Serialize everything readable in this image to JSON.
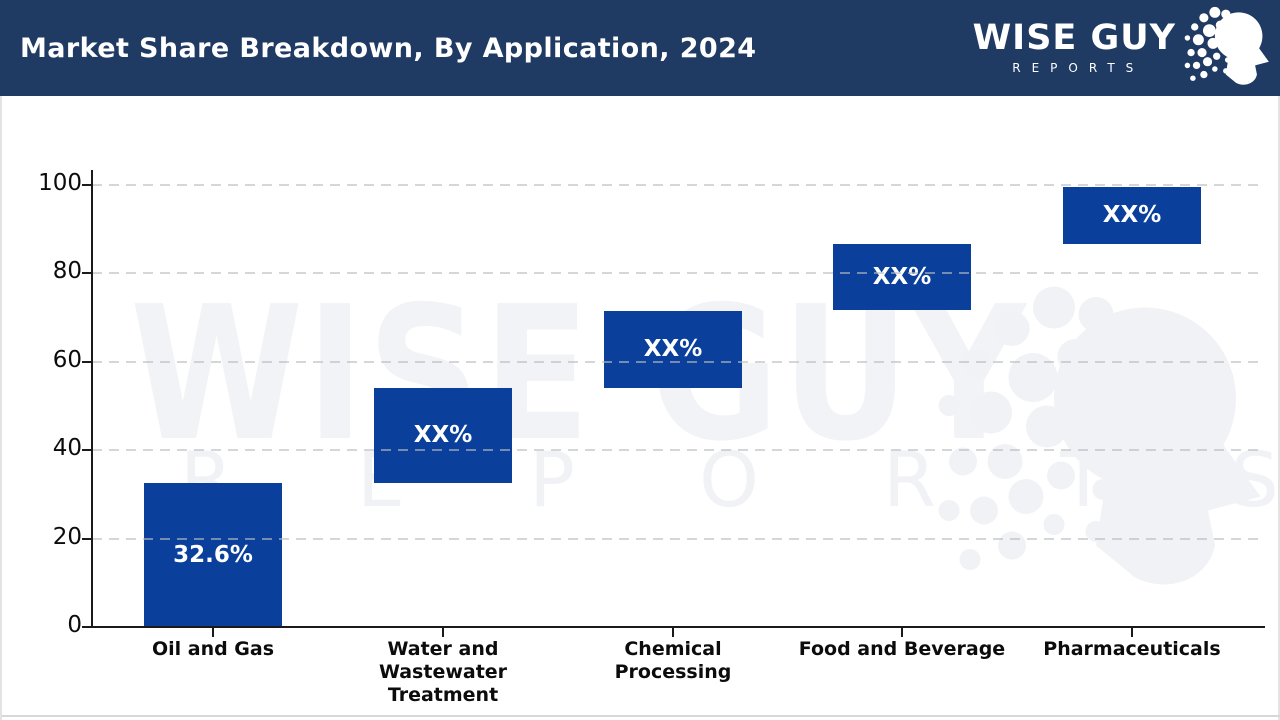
{
  "header": {
    "title": "Market Share Breakdown, By Application, 2024",
    "logo": {
      "line1": "WISE GUY",
      "line2": "REPORTS"
    }
  },
  "watermark": {
    "line1": "WISE GUY",
    "line2": "REPORTS"
  },
  "chart_data": {
    "type": "bar",
    "variant": "waterfall",
    "title": "Market Share Breakdown, By Application, 2024",
    "categories": [
      "Oil and Gas",
      "Water and Wastewater Treatment",
      "Chemical Processing",
      "Food and Beverage",
      "Pharmaceuticals"
    ],
    "category_lines": [
      [
        "Oil and Gas"
      ],
      [
        "Water and",
        "Wastewater",
        "Treatment"
      ],
      [
        "Chemical",
        "Processing"
      ],
      [
        "Food and Beverage"
      ],
      [
        "Pharmaceuticals"
      ]
    ],
    "segments": [
      {
        "category": "Oil and Gas",
        "start": 0,
        "end": 32.6,
        "label": "32.6%"
      },
      {
        "category": "Water and Wastewater Treatment",
        "start": 32.6,
        "end": 54.0,
        "label": "XX%"
      },
      {
        "category": "Chemical Processing",
        "start": 54.0,
        "end": 71.5,
        "label": "XX%"
      },
      {
        "category": "Food and Beverage",
        "start": 71.6,
        "end": 86.6,
        "label": "XX%"
      },
      {
        "category": "Pharmaceuticals",
        "start": 86.6,
        "end": 99.4,
        "label": "XX%"
      }
    ],
    "xlabel": "",
    "ylabel": "",
    "y_ticks": [
      0,
      20,
      40,
      60,
      80,
      100
    ],
    "ylim": [
      0,
      103
    ],
    "grid": "dashed-horizontal, drawn over bars",
    "legend": "none"
  },
  "colors": {
    "header_bg": "#1f3a63",
    "bar": "#0a409c",
    "bar_label": "#ffffff",
    "grid": "#d9d9d9",
    "axis": "#1a1a1a",
    "watermark": "#f2f3f6",
    "frame": "#d8d8d8"
  }
}
